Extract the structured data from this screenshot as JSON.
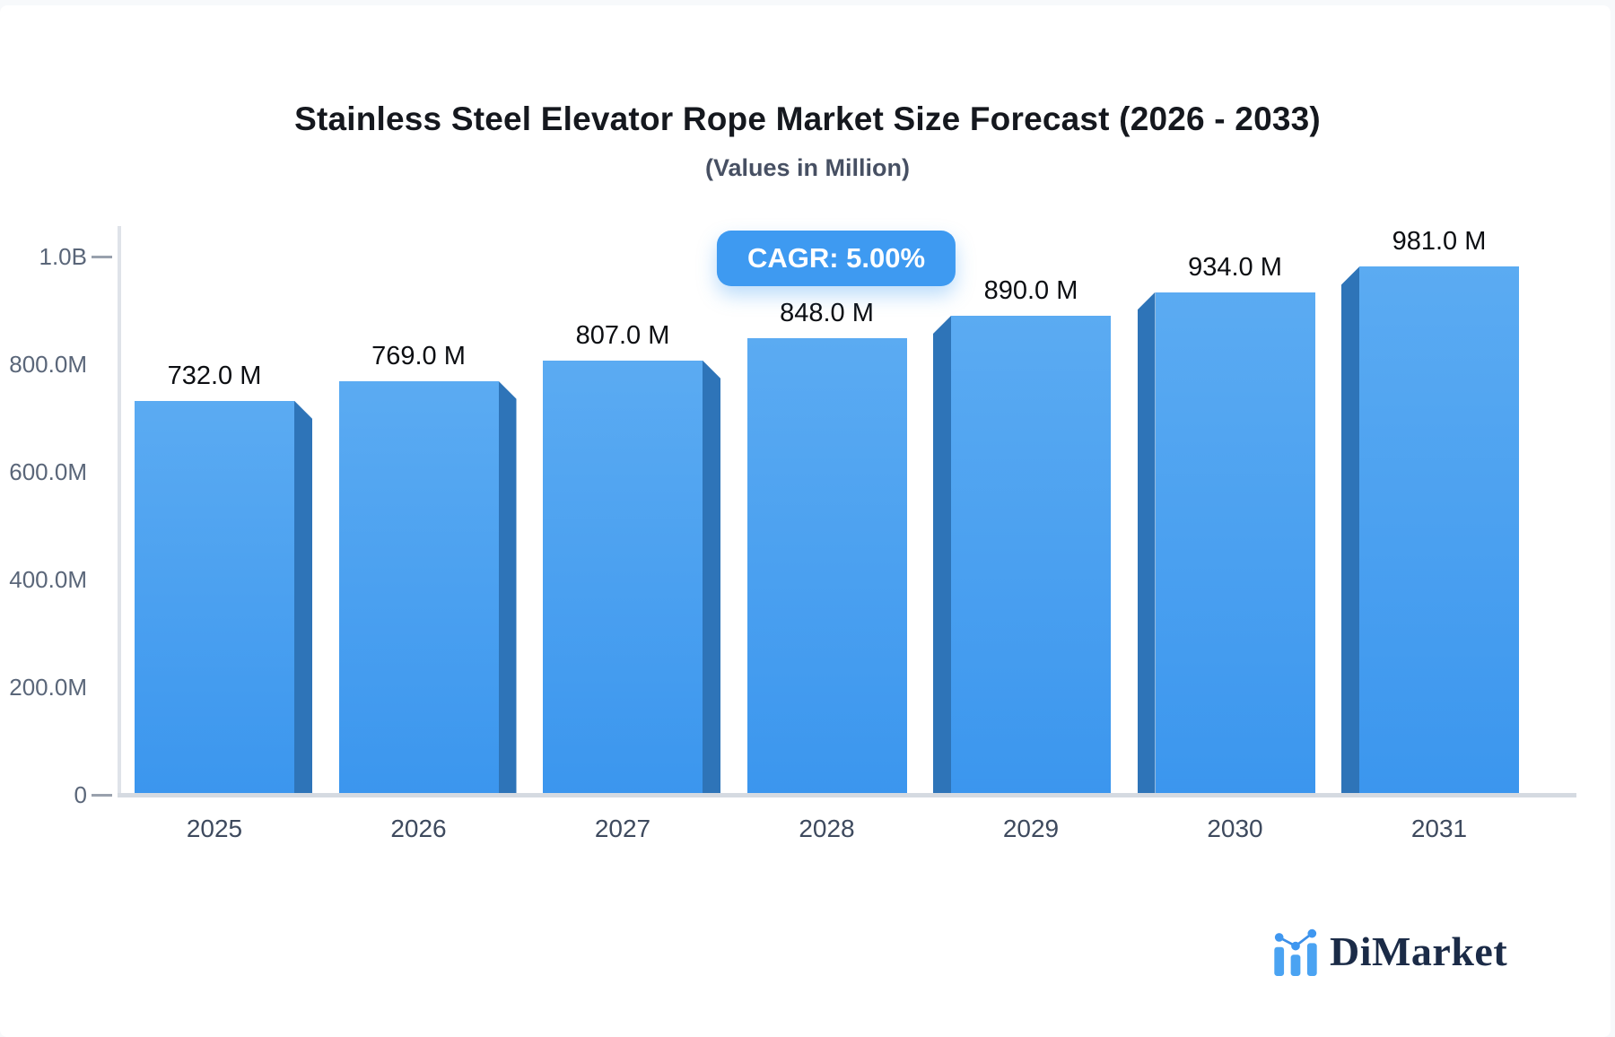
{
  "page": {
    "title": "Stainless Steel Elevator Rope Market Size Forecast (2026 - 2033)",
    "subtitle": "(Values in Million)"
  },
  "badge": {
    "label": "CAGR: 5.00%"
  },
  "logo": {
    "text": "DiMarket",
    "icon": "bar-line-chart-icon"
  },
  "chart_data": {
    "type": "bar",
    "title": "Stainless Steel Elevator Rope Market Size Forecast (2026 - 2033)",
    "subtitle": "(Values in Million)",
    "annotation": "CAGR: 5.00%",
    "categories": [
      "2025",
      "2026",
      "2027",
      "2028",
      "2029",
      "2030",
      "2031"
    ],
    "values": [
      732,
      769,
      807,
      848,
      890,
      934,
      981
    ],
    "value_labels": [
      "732.0 M",
      "769.0 M",
      "807.0 M",
      "848.0 M",
      "890.0 M",
      "934.0 M",
      "981.0 M"
    ],
    "xlabel": "",
    "ylabel": "",
    "ylim": [
      0,
      1000
    ],
    "grid": false,
    "legend": null,
    "y_ticks": [
      {
        "label": "1.0B",
        "value": 1000,
        "tick_mark": true
      },
      {
        "label": "800.0M",
        "value": 800,
        "tick_mark": false
      },
      {
        "label": "600.0M",
        "value": 600,
        "tick_mark": false
      },
      {
        "label": "400.0M",
        "value": 400,
        "tick_mark": false
      },
      {
        "label": "200.0M",
        "value": 200,
        "tick_mark": false
      },
      {
        "label": "0",
        "value": 0,
        "tick_mark": true
      }
    ],
    "colors": {
      "bar_top": "#5babf2",
      "bar_bottom": "#3b96ee",
      "bar_side": "#2e74b8",
      "badge": "#3e9af1"
    }
  }
}
